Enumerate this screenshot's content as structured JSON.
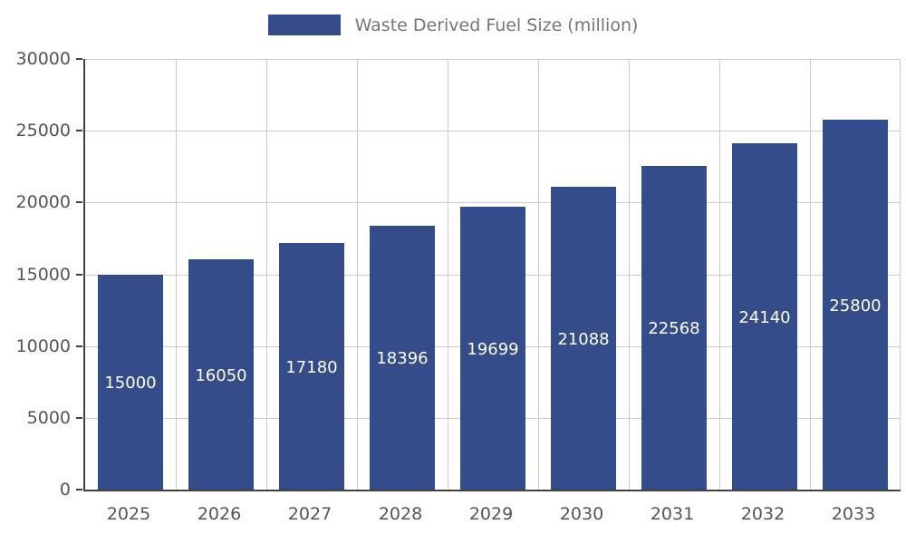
{
  "chart_data": {
    "type": "bar",
    "title": "",
    "legend_position": "top",
    "legend_label": "Waste Derived Fuel Size (million)",
    "categories": [
      "2025",
      "2026",
      "2027",
      "2028",
      "2029",
      "2030",
      "2031",
      "2032",
      "2033"
    ],
    "series": [
      {
        "name": "Waste Derived Fuel Size (million)",
        "values": [
          15000,
          16050,
          17180,
          18396,
          19699,
          21088,
          22568,
          24140,
          25800
        ]
      }
    ],
    "xlabel": "",
    "ylabel": "",
    "ylim": [
      0,
      30000
    ],
    "ytick_interval": 5000,
    "ytick_labels": [
      "0",
      "5000",
      "10000",
      "15000",
      "20000",
      "25000",
      "30000"
    ],
    "grid": true,
    "data_labels": "inside-bar-white"
  },
  "colors": {
    "bar": "#344C8A",
    "legend_text": "#757575",
    "tick_text": "#555555",
    "grid": "#cccccc",
    "axis": "#424242",
    "bar_label": "#ffffff",
    "background": "#ffffff"
  }
}
